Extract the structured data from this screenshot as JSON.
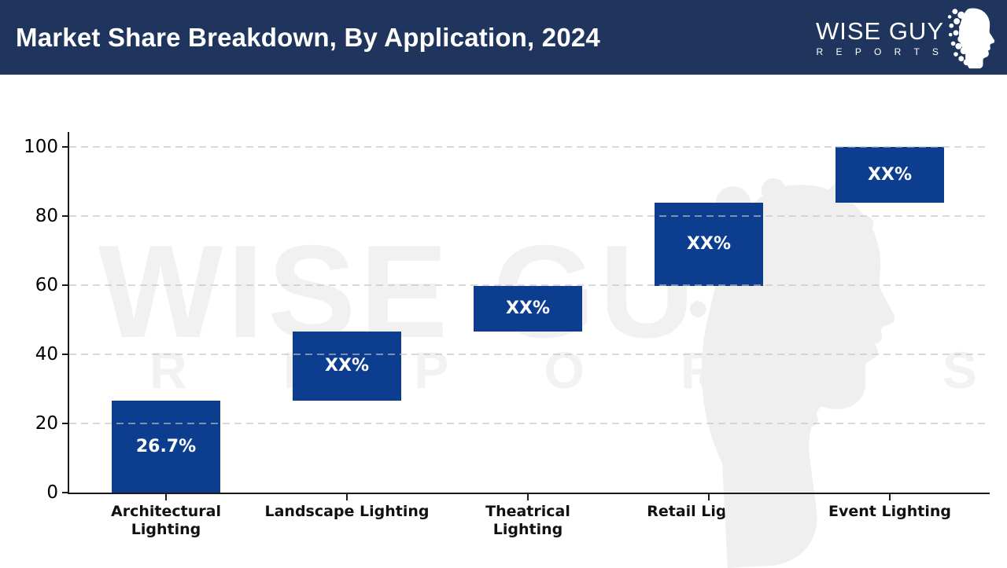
{
  "header": {
    "title": "Market Share Breakdown, By Application, 2024",
    "logo": {
      "brand": "WISE GUY",
      "sub": "R E P O R T S"
    }
  },
  "watermark": {
    "line1": "WISE GUY",
    "line2": "R E P O R T S"
  },
  "colors": {
    "header_bg": "#1f355e",
    "bar": "#0c3d8f",
    "bar_label": "#ffffff",
    "grid": "#c3c3c3",
    "axis": "#1a1a1a",
    "watermark": "#f1f1f1"
  },
  "chart_data": {
    "type": "bar",
    "subtype": "waterfall",
    "title": "Market Share Breakdown, By Application, 2024",
    "xlabel": "",
    "ylabel": "",
    "ylim": [
      0,
      104
    ],
    "y_ticks": [
      0,
      20,
      40,
      60,
      80,
      100
    ],
    "grid": "dashed horizontal",
    "legend": "none",
    "categories": [
      "Architectural Lighting",
      "Landscape Lighting",
      "Theatrical Lighting",
      "Retail Lighting",
      "Event Lighting"
    ],
    "category_lines": [
      [
        "Architectural",
        "Lighting"
      ],
      [
        "Landscape Lighting"
      ],
      [
        "Theatrical",
        "Lighting"
      ],
      [
        "Retail Lighting"
      ],
      [
        "Event Lighting"
      ]
    ],
    "segments": [
      {
        "category": "Architectural Lighting",
        "start": 0,
        "end": 26.7,
        "value_label": "26.7%"
      },
      {
        "category": "Landscape Lighting",
        "start": 26.7,
        "end": 46.6,
        "value_label": "XX%"
      },
      {
        "category": "Theatrical Lighting",
        "start": 46.6,
        "end": 59.8,
        "value_label": "XX%"
      },
      {
        "category": "Retail Lighting",
        "start": 59.8,
        "end": 83.9,
        "value_label": "XX%"
      },
      {
        "category": "Event Lighting",
        "start": 83.9,
        "end": 100,
        "value_label": "XX%"
      }
    ]
  }
}
